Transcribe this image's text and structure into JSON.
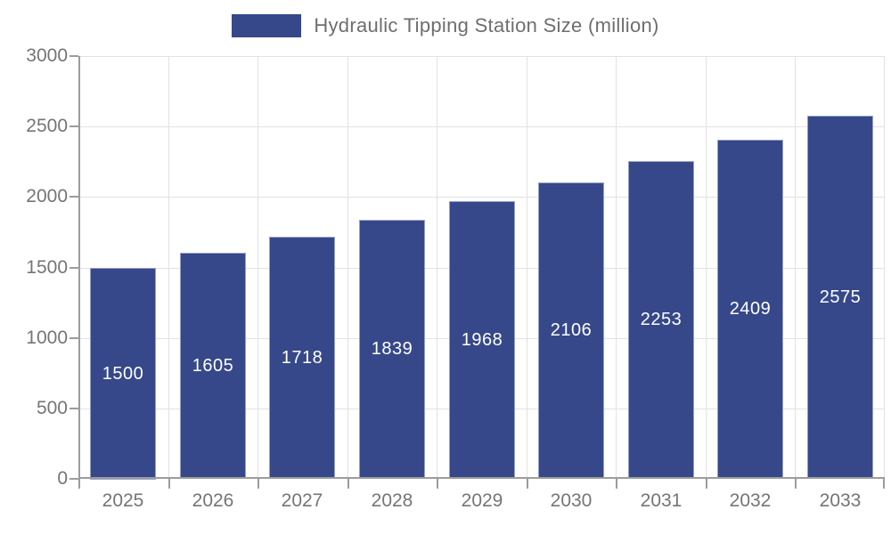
{
  "legend": {
    "label": "Hydraulic Tipping Station Size (million)",
    "swatch_color": "#36488A"
  },
  "chart_data": {
    "type": "bar",
    "title": "Hydraulic Tipping Station Size (million)",
    "categories": [
      "2025",
      "2026",
      "2027",
      "2028",
      "2029",
      "2030",
      "2031",
      "2032",
      "2033"
    ],
    "values": [
      1500,
      1605,
      1718,
      1839,
      1968,
      2106,
      2253,
      2409,
      2575
    ],
    "xlabel": "",
    "ylabel": "",
    "ylim": [
      0,
      3000
    ],
    "ytick_step": 500,
    "ytick_labels": [
      "0",
      "500",
      "1000",
      "1500",
      "2000",
      "2500",
      "3000"
    ],
    "grid": true,
    "legend_position": "top",
    "bar_label_position": "inside-center",
    "colors": {
      "bar": "#36488A",
      "bar_label": "#ffffff",
      "grid": "#e2e2e2",
      "axis_line": "#9c9c9c",
      "axis_text": "#757575",
      "legend_text": "#6e6e6e"
    }
  }
}
